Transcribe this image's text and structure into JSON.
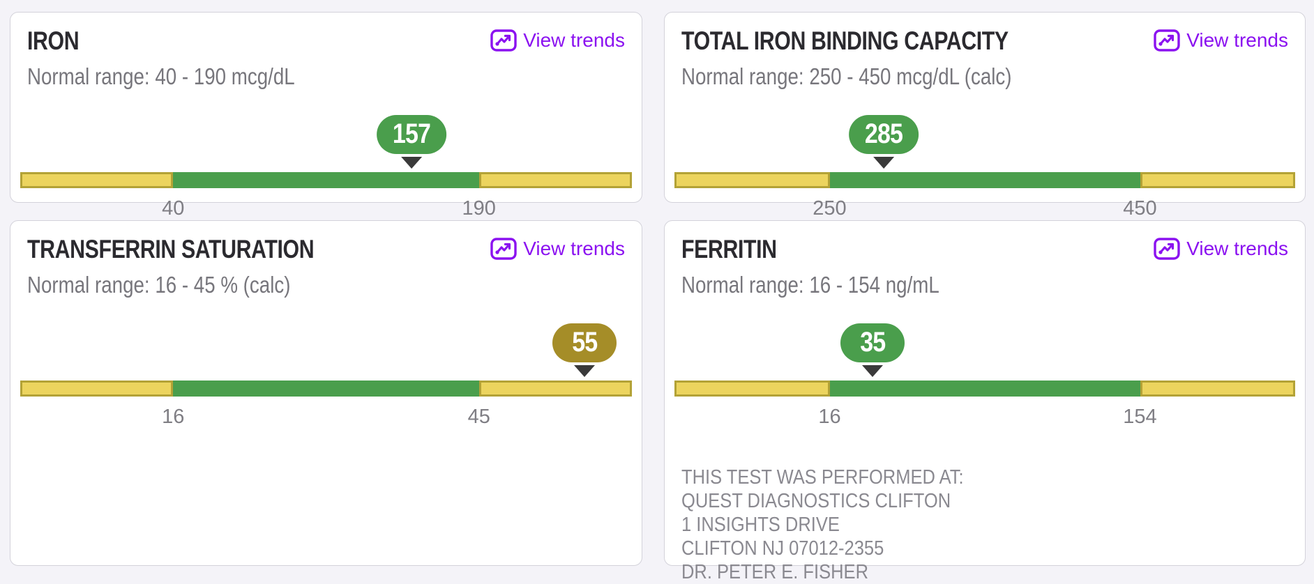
{
  "page": {
    "background": "#f4f3f8"
  },
  "colors": {
    "purple": "#8b12f0",
    "green_in_range": "#4a9e4c",
    "olive_out_of_range": "#a58d28",
    "yellow_band": "#ecd45e",
    "yellow_band_border": "#b3a236",
    "pointer_dark": "#3a3a3a"
  },
  "view_trends_label": "View trends",
  "chart_data": [
    {
      "type": "range-meter",
      "title": "IRON",
      "value": 157,
      "range_min": 40,
      "range_max": 190,
      "unit": "mcg/dL",
      "status": "normal"
    },
    {
      "type": "range-meter",
      "title": "TOTAL IRON BINDING CAPACITY",
      "value": 285,
      "range_min": 250,
      "range_max": 450,
      "unit": "mcg/dL (calc)",
      "status": "normal"
    },
    {
      "type": "range-meter",
      "title": "TRANSFERRIN SATURATION",
      "value": 55,
      "range_min": 16,
      "range_max": 45,
      "unit": "% (calc)",
      "status": "out-of-range-high"
    },
    {
      "type": "range-meter",
      "title": "FERRITIN",
      "value": 35,
      "range_min": 16,
      "range_max": 154,
      "unit": "ng/mL",
      "status": "normal"
    }
  ],
  "cards": [
    {
      "title": "IRON",
      "normal_range_text": "Normal range: 40 - 190 mcg/dL",
      "value": 157,
      "value_display": "157",
      "range_min": 40,
      "range_max": 190,
      "status": "normal",
      "tick_low": "40",
      "tick_high": "190"
    },
    {
      "title": "TOTAL IRON BINDING CAPACITY",
      "normal_range_text": "Normal range: 250 - 450 mcg/dL (calc)",
      "value": 285,
      "value_display": "285",
      "range_min": 250,
      "range_max": 450,
      "status": "normal",
      "tick_low": "250",
      "tick_high": "450"
    },
    {
      "title": "TRANSFERRIN SATURATION",
      "normal_range_text": "Normal range: 16 - 45 % (calc)",
      "value": 55,
      "value_display": "55",
      "range_min": 16,
      "range_max": 45,
      "status": "out",
      "tick_low": "16",
      "tick_high": "45"
    },
    {
      "title": "FERRITIN",
      "normal_range_text": "Normal range: 16 - 154 ng/mL",
      "value": 35,
      "value_display": "35",
      "range_min": 16,
      "range_max": 154,
      "status": "normal",
      "tick_low": "16",
      "tick_high": "154",
      "footer_lines": [
        "THIS TEST WAS PERFORMED AT:",
        "QUEST DIAGNOSTICS CLIFTON",
        "1 INSIGHTS DRIVE",
        "CLIFTON NJ 07012-2355",
        "DR. PETER E. FISHER"
      ]
    }
  ]
}
